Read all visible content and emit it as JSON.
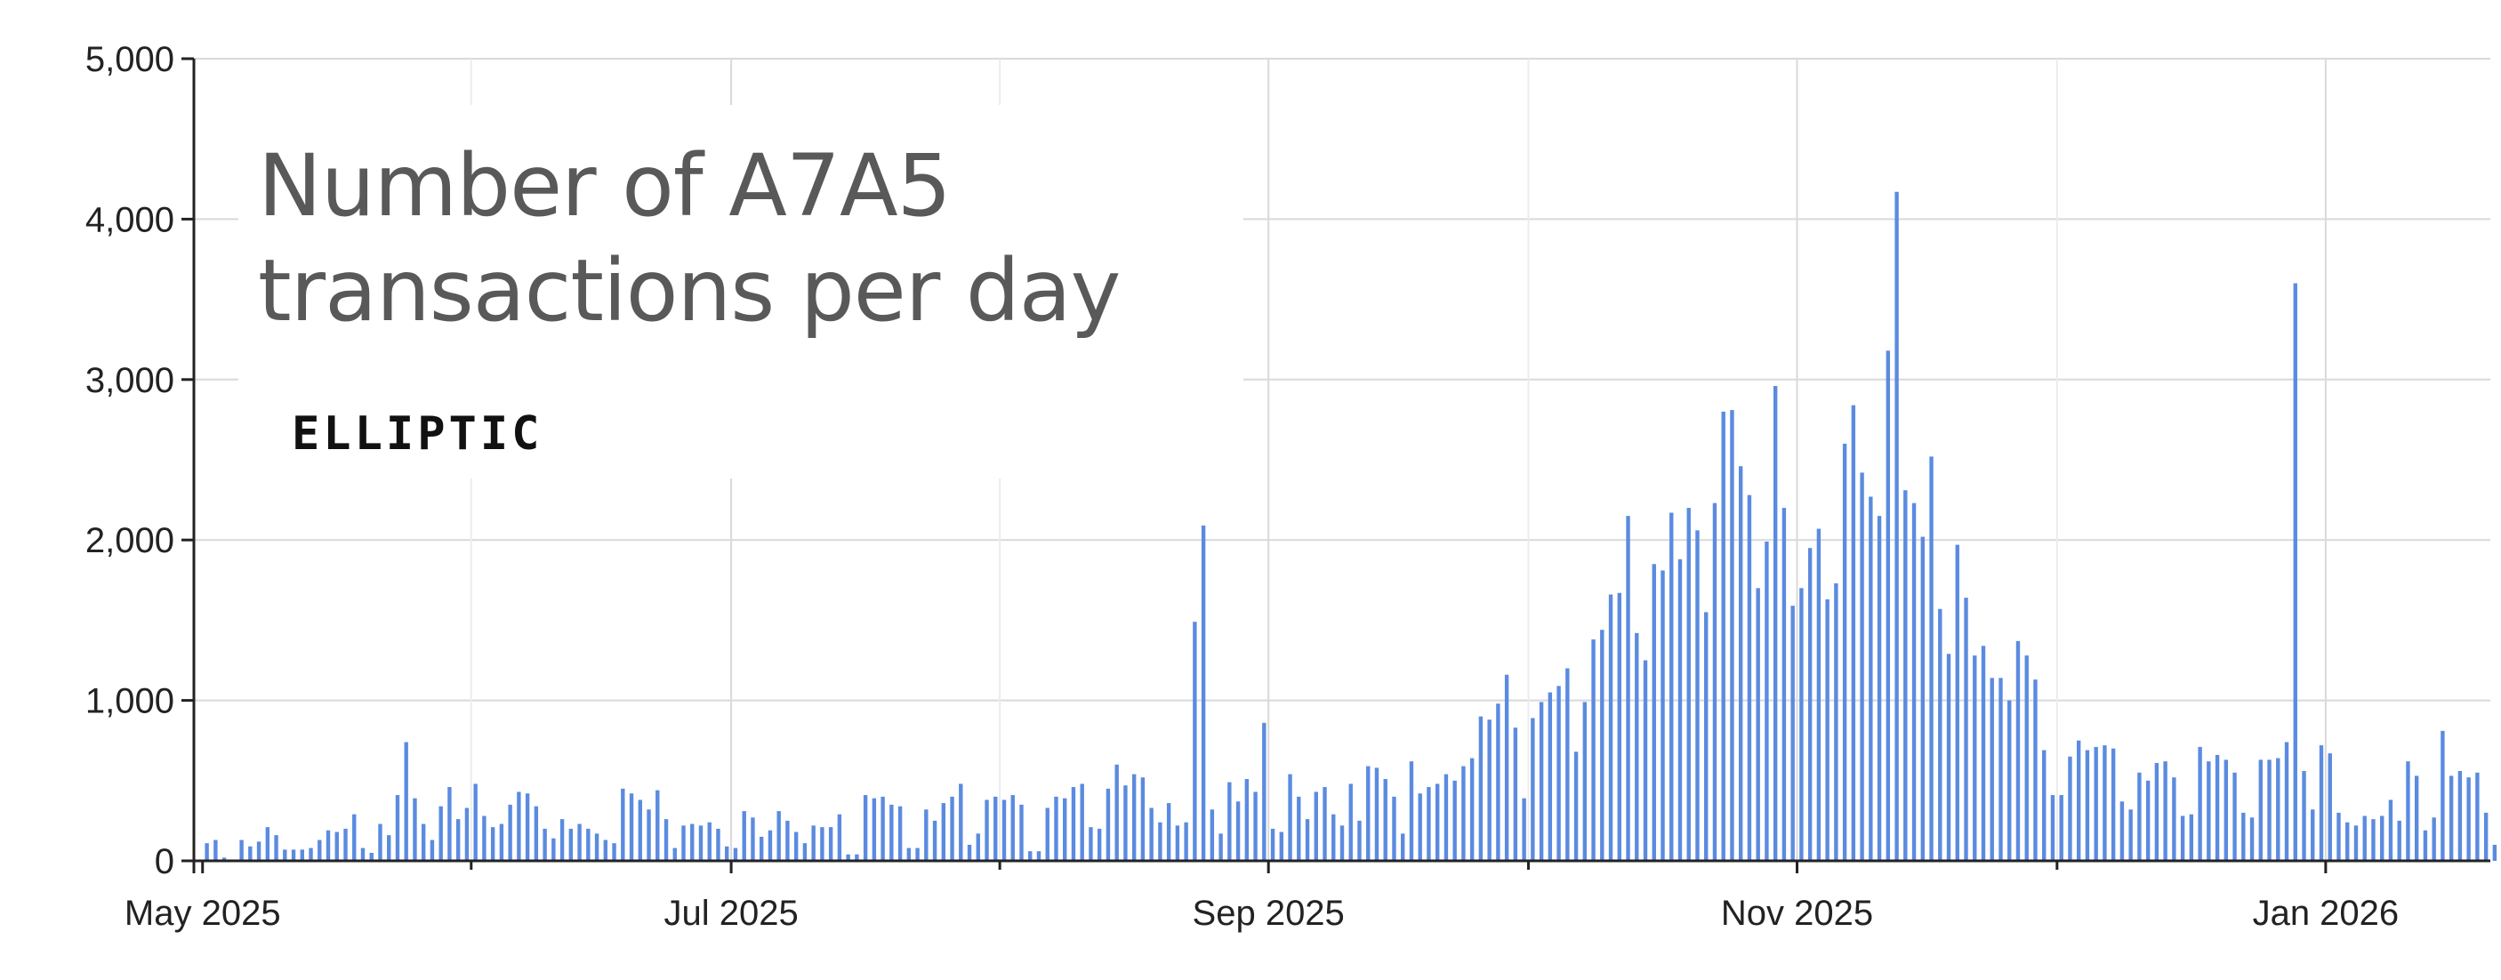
{
  "title_lines": [
    "Number of A7A5",
    "transactions per day"
  ],
  "logo_text": "ELLIPTIC",
  "colors": {
    "bar": "#5b8be0",
    "grid": "#d9d9d9",
    "axis": "#222222",
    "title": "#595959"
  },
  "chart_data": {
    "type": "bar",
    "title": "Number of A7A5 transactions per day",
    "xlabel": "",
    "ylabel": "",
    "x_start": "2025-05-01",
    "x_ticks": [
      {
        "label": "May 2025",
        "date": "2025-05-01"
      },
      {
        "label": "Jul 2025",
        "date": "2025-07-01"
      },
      {
        "label": "Sep 2025",
        "date": "2025-09-01"
      },
      {
        "label": "Nov 2025",
        "date": "2025-11-01"
      },
      {
        "label": "Jan 2026",
        "date": "2026-01-01"
      }
    ],
    "minor_tick_dates": [
      "2025-06-01",
      "2025-08-01",
      "2025-10-01",
      "2025-12-01"
    ],
    "xlim": [
      "2025-04-30",
      "2026-01-20"
    ],
    "y_ticks": [
      0,
      1000,
      2000,
      3000,
      4000,
      5000
    ],
    "y_tick_labels": [
      "0",
      "1,000",
      "2,000",
      "3,000",
      "4,000",
      "5,000"
    ],
    "ylim": [
      0,
      5000
    ],
    "grid": true,
    "values": [
      110,
      130,
      20,
      0,
      130,
      90,
      120,
      210,
      160,
      70,
      70,
      70,
      80,
      130,
      190,
      180,
      200,
      290,
      80,
      50,
      230,
      160,
      410,
      740,
      390,
      230,
      130,
      340,
      460,
      260,
      330,
      480,
      280,
      210,
      230,
      350,
      430,
      420,
      340,
      200,
      140,
      260,
      200,
      230,
      200,
      170,
      130,
      110,
      450,
      420,
      380,
      320,
      440,
      260,
      80,
      220,
      230,
      220,
      240,
      200,
      90,
      80,
      310,
      270,
      150,
      190,
      310,
      250,
      180,
      110,
      220,
      210,
      210,
      290,
      40,
      40,
      410,
      390,
      400,
      350,
      340,
      80,
      80,
      320,
      250,
      360,
      400,
      480,
      100,
      170,
      380,
      400,
      380,
      410,
      350,
      60,
      60,
      330,
      400,
      390,
      460,
      480,
      210,
      200,
      450,
      600,
      470,
      540,
      520,
      330,
      240,
      360,
      220,
      240,
      1490,
      2090,
      320,
      170,
      490,
      370,
      510,
      430,
      860,
      200,
      180,
      540,
      400,
      260,
      430,
      460,
      290,
      220,
      480,
      250,
      590,
      580,
      510,
      400,
      170,
      620,
      420,
      460,
      480,
      540,
      500,
      590,
      640,
      900,
      880,
      980,
      1160,
      830,
      390,
      890,
      990,
      1050,
      1090,
      1200,
      680,
      990,
      1380,
      1440,
      1660,
      1670,
      2150,
      1420,
      1250,
      1850,
      1810,
      2170,
      1880,
      2200,
      2060,
      1550,
      2230,
      2800,
      2810,
      2460,
      2280,
      1700,
      1990,
      2960,
      2200,
      1590,
      1700,
      1950,
      2070,
      1630,
      1730,
      2600,
      2840,
      2420,
      2270,
      2150,
      3180,
      4170,
      2310,
      2230,
      2020,
      2520,
      1570,
      1290,
      1970,
      1640,
      1280,
      1340,
      1140,
      1140,
      1000,
      1370,
      1280,
      1130,
      690,
      410,
      410,
      650,
      750,
      690,
      710,
      720,
      700,
      370,
      320,
      550,
      500,
      610,
      620,
      520,
      280,
      290,
      710,
      620,
      660,
      630,
      550,
      300,
      270,
      630,
      630,
      640,
      740,
      3600,
      560,
      320,
      720,
      670,
      300,
      240,
      220,
      280,
      260,
      280,
      380,
      250,
      620,
      530,
      190,
      270,
      810,
      530,
      560,
      520,
      550,
      300,
      100,
      260,
      340
    ]
  }
}
